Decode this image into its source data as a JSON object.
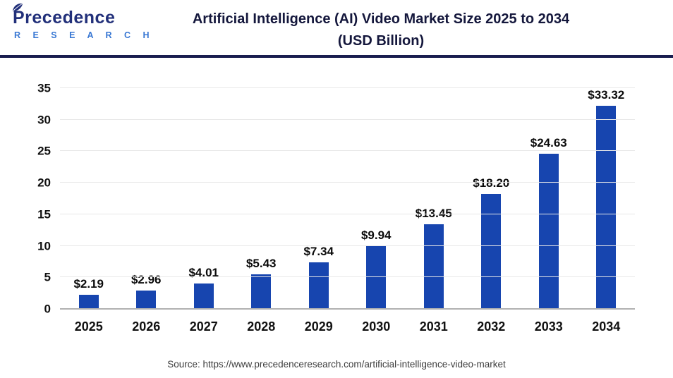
{
  "header": {
    "logo_brand": "Precedence",
    "logo_sub": "R E S E A R C H",
    "title_line1": "Artificial Intelligence (AI) Video Market Size 2025 to 2034",
    "title_line2": "(USD Billion)"
  },
  "chart_data": {
    "type": "bar",
    "title": "Artificial Intelligence (AI) Video Market Size 2025 to 2034 (USD Billion)",
    "categories": [
      "2025",
      "2026",
      "2027",
      "2028",
      "2029",
      "2030",
      "2031",
      "2032",
      "2033",
      "2034"
    ],
    "values": [
      2.19,
      2.96,
      4.01,
      5.43,
      7.34,
      9.94,
      13.45,
      18.2,
      24.63,
      33.32
    ],
    "value_labels": [
      "$2.19",
      "$2.96",
      "$4.01",
      "$5.43",
      "$7.34",
      "$9.94",
      "$13.45",
      "$18.20",
      "$24.63",
      "$33.32"
    ],
    "xlabel": "",
    "ylabel": "",
    "ylim": [
      0,
      35
    ],
    "yticks": [
      0,
      5,
      10,
      15,
      20,
      25,
      30,
      35
    ],
    "grid": true,
    "legend": false,
    "bar_color": "#1745af"
  },
  "footer": {
    "source": "Source: https://www.precedenceresearch.com/artificial-intelligence-video-market"
  },
  "colors": {
    "bar": "#1745af",
    "header_rule": "#191d4f",
    "title_text": "#14173c",
    "logo_navy": "#22307a",
    "logo_blue": "#3877d3",
    "gridline": "#e8e8e8",
    "axis_line": "#b1b1b1"
  }
}
